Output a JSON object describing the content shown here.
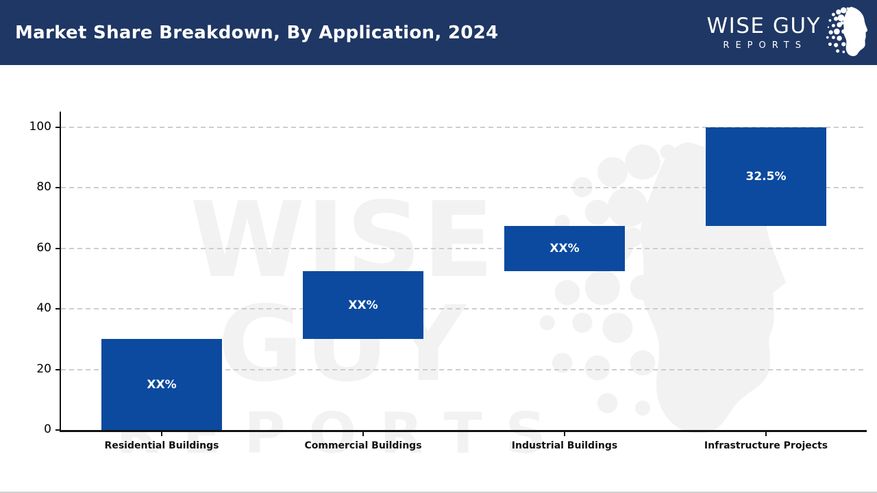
{
  "header": {
    "title": "Market Share Breakdown, By Application, 2024",
    "logo_line1": "WISE GUY",
    "logo_line2": "REPORTS",
    "bg_color": "#1f3764"
  },
  "watermark": {
    "line1": "WISE GUY",
    "line2": "REPORTS"
  },
  "chart_data": {
    "type": "bar",
    "variant": "floating-segment-waterfall",
    "title": "Market Share Breakdown, By Application, 2024",
    "categories": [
      "Residential Buildings",
      "Commercial Buildings",
      "Industrial Buildings",
      "Infrastructure Projects"
    ],
    "bars": [
      {
        "category": "Residential Buildings",
        "start": 0,
        "end": 30,
        "label": "XX%"
      },
      {
        "category": "Commercial Buildings",
        "start": 30,
        "end": 52.5,
        "label": "XX%"
      },
      {
        "category": "Industrial Buildings",
        "start": 52.5,
        "end": 67.5,
        "label": "XX%"
      },
      {
        "category": "Infrastructure Projects",
        "start": 67.5,
        "end": 100,
        "label": "32.5%"
      }
    ],
    "xlabel": "",
    "ylabel": "",
    "ylim": [
      0,
      100
    ],
    "yticks": [
      0,
      20,
      40,
      60,
      80,
      100
    ],
    "bar_color": "#0b4a9f",
    "grid": "horizontal-dashed",
    "gridline_color": "#cdcdcd",
    "legend": "none"
  }
}
